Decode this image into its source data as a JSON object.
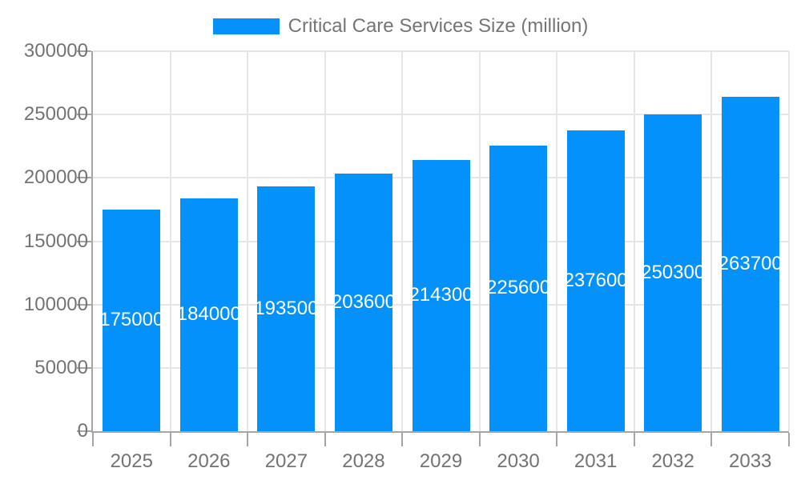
{
  "legend": {
    "label": "Critical Care Services Size (million)"
  },
  "chart_data": {
    "type": "bar",
    "title": "Critical Care Services Size (million)",
    "categories": [
      "2025",
      "2026",
      "2027",
      "2028",
      "2029",
      "2030",
      "2031",
      "2032",
      "2033"
    ],
    "values": [
      175000,
      184000,
      193500,
      203600,
      214300,
      225600,
      237600,
      250300,
      263700
    ],
    "bar_labels": [
      "175000",
      "184000",
      "193500",
      "203600",
      "214300",
      "225600",
      "237600",
      "250300",
      "263700"
    ],
    "series": [
      {
        "name": "Critical Care Services Size (million)",
        "values": [
          175000,
          184000,
          193500,
          203600,
          214300,
          225600,
          237600,
          250300,
          263700
        ]
      }
    ],
    "xlabel": "",
    "ylabel": "",
    "ylim": [
      0,
      300000
    ],
    "yticks": [
      0,
      50000,
      100000,
      150000,
      200000,
      250000,
      300000
    ],
    "ytick_labels": [
      "0",
      "50000",
      "100000",
      "150000",
      "200000",
      "250000",
      "300000"
    ],
    "grid": true,
    "legend_position": "top",
    "colors": {
      "bar": "#0591FA",
      "bar_label_text": "#FFFFFF",
      "grid": "#E6E6E6",
      "axis": "#A6A6A6",
      "tick_text": "#737373",
      "legend_text": "#757575",
      "background": "#FFFFFF"
    }
  }
}
